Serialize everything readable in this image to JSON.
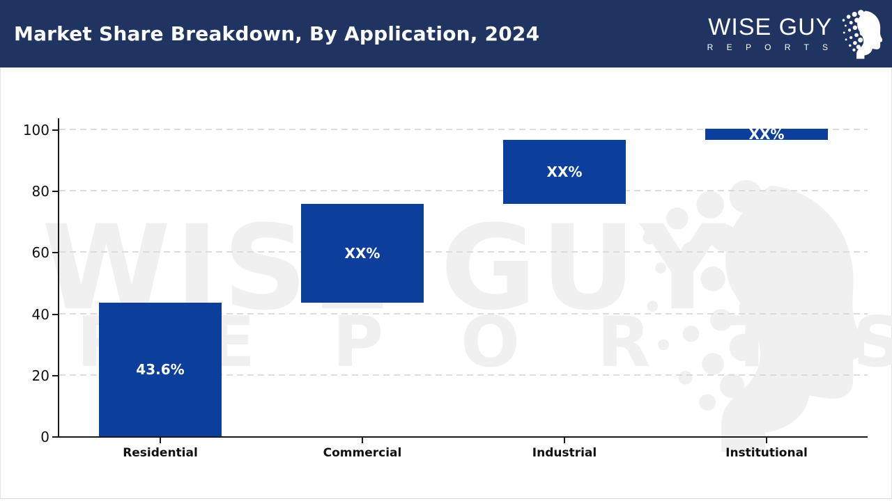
{
  "header": {
    "title": "Market Share Breakdown, By Application, 2024",
    "background_color": "#1f3461"
  },
  "logo": {
    "line1": "WISE GUY",
    "line2": "R E P O R T S",
    "head_icon": "head-profile-dots-icon"
  },
  "watermark": {
    "line1": "WISE GUY",
    "line2": "R E P O R T S",
    "head_icon": "head-profile-dots-icon",
    "color": "#f0f0f0"
  },
  "chart_data": {
    "type": "bar",
    "subtype": "waterfall",
    "title": "Market Share Breakdown, By Application, 2024",
    "categories": [
      "Residential",
      "Commercial",
      "Industrial",
      "Institutional"
    ],
    "bars": [
      {
        "category": "Residential",
        "start": 0,
        "end": 43.6,
        "label": "43.6%"
      },
      {
        "category": "Commercial",
        "start": 43.6,
        "end": 75.8,
        "label": "XX%"
      },
      {
        "category": "Industrial",
        "start": 75.8,
        "end": 96.6,
        "label": "XX%"
      },
      {
        "category": "Institutional",
        "start": 96.5,
        "end": 100.2,
        "label": "XX%"
      }
    ],
    "yticks": [
      0,
      20,
      40,
      60,
      80,
      100
    ],
    "ylim": [
      0,
      104
    ],
    "xlabel": "",
    "ylabel": "",
    "grid": "horizontal-dashed",
    "bar_color": "#0b3f9b",
    "bar_label_color": "#ffffff",
    "axis_color": "#1a1a1a"
  }
}
